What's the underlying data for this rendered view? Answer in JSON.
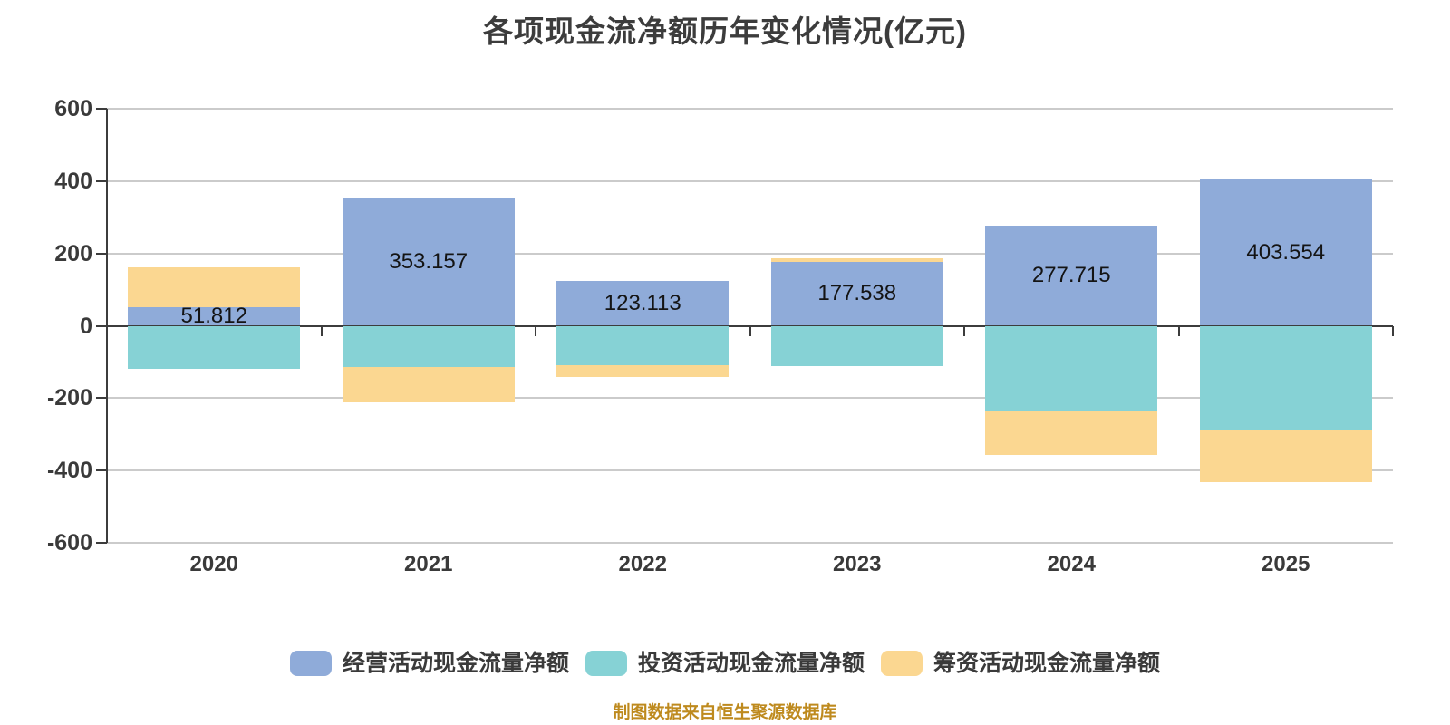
{
  "title": "各项现金流净额历年变化情况(亿元)",
  "caption": "制图数据来自恒生聚源数据库",
  "colors": {
    "operating": "#8FABD9",
    "investing": "#86D2D5",
    "financing": "#FBD791",
    "grid": "#CBCBCB",
    "axis": "#3C3C3C",
    "tick_text": "#3A3A3A",
    "value_text": "#141414",
    "title_text": "#3C3C3C",
    "caption_text": "#BE8A1E",
    "background": "#FFFFFF"
  },
  "chart_data": {
    "type": "bar",
    "stacked": true,
    "grid": true,
    "legend_position": "bottom",
    "title": "各项现金流净额历年变化情况(亿元)",
    "xlabel": "",
    "ylabel": "",
    "ylim": [
      -600,
      600
    ],
    "y_ticks": [
      600,
      400,
      200,
      0,
      -200,
      -400,
      -600
    ],
    "categories": [
      "2020",
      "2021",
      "2022",
      "2023",
      "2024",
      "2025"
    ],
    "series": [
      {
        "name": "经营活动现金流量净额",
        "color_key": "operating",
        "values": [
          51.812,
          353.157,
          123.113,
          177.538,
          277.715,
          403.554
        ]
      },
      {
        "name": "投资活动现金流量净额",
        "color_key": "investing",
        "values": [
          -120,
          -115,
          -110,
          -112,
          -237,
          -290
        ]
      },
      {
        "name": "筹资活动现金流量净额",
        "color_key": "financing",
        "values": [
          111,
          -97,
          -32,
          9,
          -120,
          -142
        ]
      }
    ],
    "bar_labels": [
      "51.812",
      "353.157",
      "123.113",
      "177.538",
      "277.715",
      "403.554"
    ]
  }
}
